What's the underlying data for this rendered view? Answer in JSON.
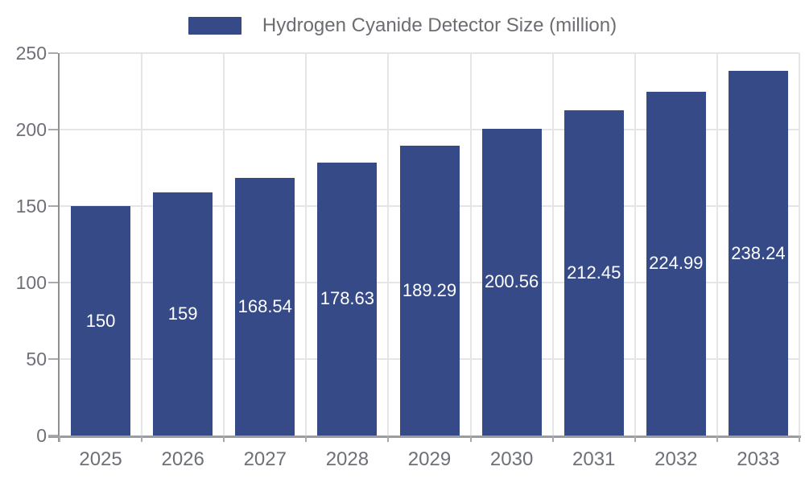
{
  "chart_data": {
    "type": "bar",
    "title": "",
    "legend_label": "Hydrogen Cyanide Detector Size (million)",
    "legend_position": "top-center",
    "categories": [
      "2025",
      "2026",
      "2027",
      "2028",
      "2029",
      "2030",
      "2031",
      "2032",
      "2033"
    ],
    "values": [
      150,
      159,
      168.54,
      178.63,
      189.29,
      200.56,
      212.45,
      224.99,
      238.24
    ],
    "xlabel": "",
    "ylabel": "",
    "ylim": [
      0,
      250
    ],
    "yticks": [
      0,
      50,
      100,
      150,
      200,
      250
    ],
    "grid": true,
    "bar_color": "#364a87",
    "value_label_color": "#ffffff"
  }
}
